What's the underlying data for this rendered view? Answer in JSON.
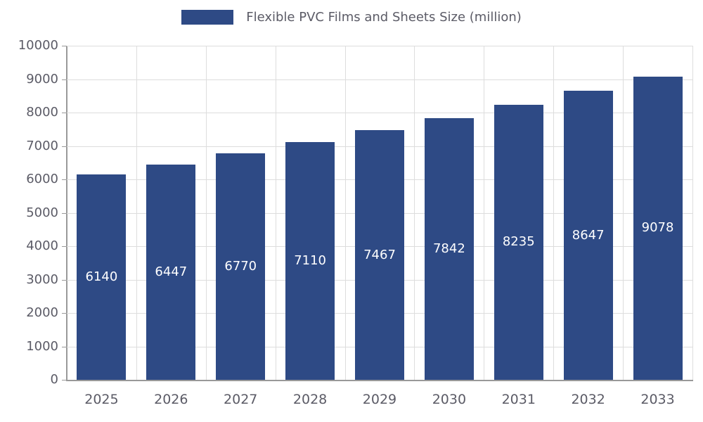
{
  "colors": {
    "bar": "#2E4A85",
    "grid": "#DDDDDD",
    "axis": "#999999",
    "text": "#5B5B66",
    "value_label": "#FFFFFF"
  },
  "chart_data": {
    "type": "bar",
    "title": "Flexible PVC Films and Sheets Size (million)",
    "xlabel": "",
    "ylabel": "",
    "categories": [
      "2025",
      "2026",
      "2027",
      "2028",
      "2029",
      "2030",
      "2031",
      "2032",
      "2033"
    ],
    "values": [
      6140,
      6447,
      6770,
      7110,
      7467,
      7842,
      8235,
      8647,
      9078
    ],
    "ylim": [
      0,
      10000
    ],
    "y_ticks": [
      0,
      1000,
      2000,
      3000,
      4000,
      5000,
      6000,
      7000,
      8000,
      9000,
      10000
    ],
    "grid": true,
    "legend_position": "top",
    "legend_entries": [
      "Flexible PVC Films and Sheets Size (million)"
    ],
    "value_labels": "inside-center"
  }
}
